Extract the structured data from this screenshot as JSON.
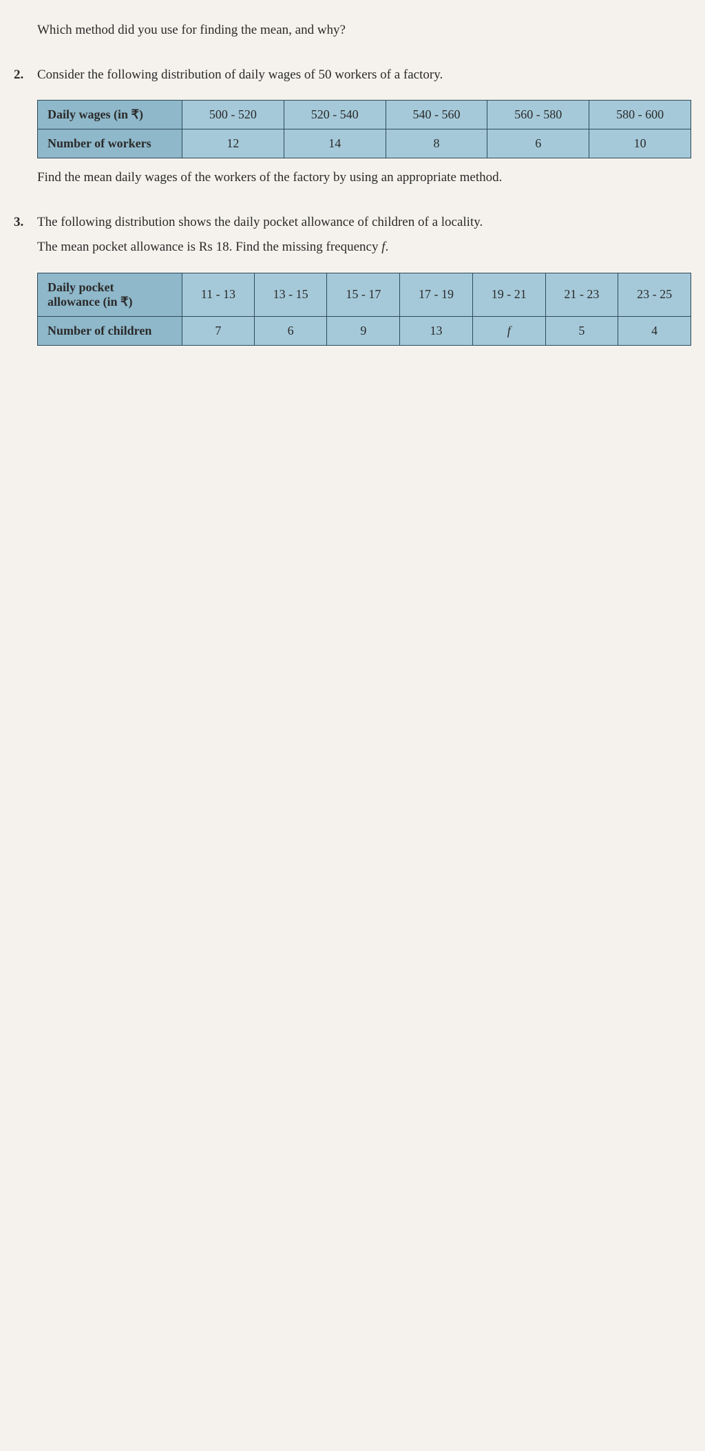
{
  "q1": {
    "text": "Which method did you use for finding the mean, and why?"
  },
  "q2": {
    "number": "2.",
    "text": "Consider the following distribution of daily wages of 50 workers of a factory.",
    "table": {
      "row_header_1": "Daily wages (in ₹)",
      "row_header_2": "Number of workers",
      "cols": [
        "500 - 520",
        "520 - 540",
        "540 - 560",
        "560 - 580",
        "580 - 600"
      ],
      "values": [
        "12",
        "14",
        "8",
        "6",
        "10"
      ],
      "header_bg": "#8fb8ca",
      "cell_bg": "#a5c9d9",
      "border_color": "#2a4a5a"
    },
    "after_text": "Find the mean daily wages of the workers of the factory by using an appropriate method."
  },
  "q3": {
    "number": "3.",
    "text_line1": "The following distribution shows the daily pocket allowance of children of a locality.",
    "text_line2_a": "The mean pocket allowance is Rs 18. Find the missing frequency ",
    "text_line2_b": "f",
    "text_line2_c": ".",
    "table": {
      "row_header_1a": "Daily pocket",
      "row_header_1b": "allowance (in ₹)",
      "row_header_2": "Number of children",
      "cols": [
        "11 - 13",
        "13 - 15",
        "15 - 17",
        "17 - 19",
        "19 - 21",
        "21 - 23",
        "23 - 25"
      ],
      "values": [
        "7",
        "6",
        "9",
        "13",
        "f",
        "5",
        "4"
      ],
      "header_bg": "#8fb8ca",
      "cell_bg": "#a5c9d9",
      "border_color": "#2a4a5a"
    }
  }
}
